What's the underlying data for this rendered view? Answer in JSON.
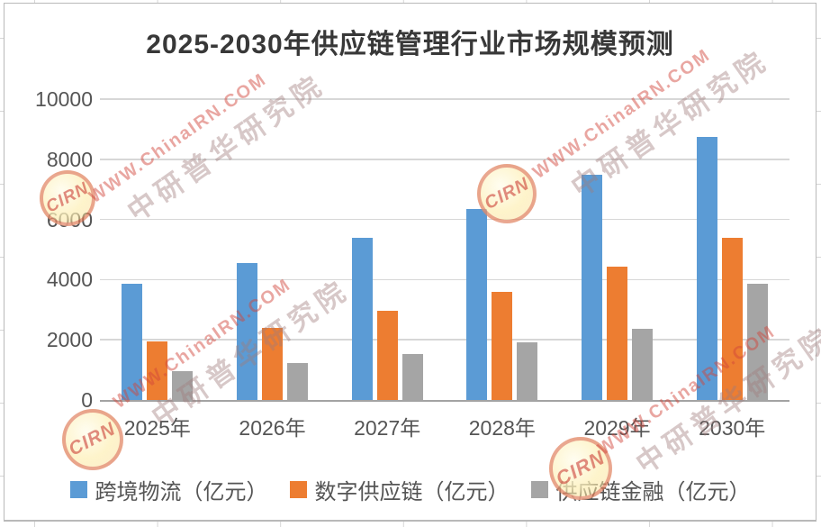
{
  "watermark": {
    "brand": "CIRN",
    "url_text": "WWW.ChinaIRN.COM",
    "cn_text": "中研普华研究院"
  },
  "chart_data": {
    "type": "bar",
    "title": "2025-2030年供应链管理行业市场规模预测",
    "categories": [
      "2025年",
      "2026年",
      "2027年",
      "2028年",
      "2029年",
      "2030年"
    ],
    "series": [
      {
        "name": "跨境物流（亿元）",
        "color": "#5B9BD5",
        "values": [
          3870,
          4560,
          5400,
          6350,
          7500,
          8750
        ]
      },
      {
        "name": "数字供应链（亿元）",
        "color": "#ED7D31",
        "values": [
          1950,
          2400,
          2950,
          3600,
          4430,
          5400
        ]
      },
      {
        "name": "供应链金融（亿元）",
        "color": "#A5A5A5",
        "values": [
          950,
          1220,
          1530,
          1930,
          2380,
          3850
        ]
      }
    ],
    "ylim": [
      0,
      10000
    ],
    "yticks": [
      0,
      2000,
      4000,
      6000,
      8000,
      10000
    ],
    "grid": "horizontal",
    "legend_position": "bottom"
  }
}
